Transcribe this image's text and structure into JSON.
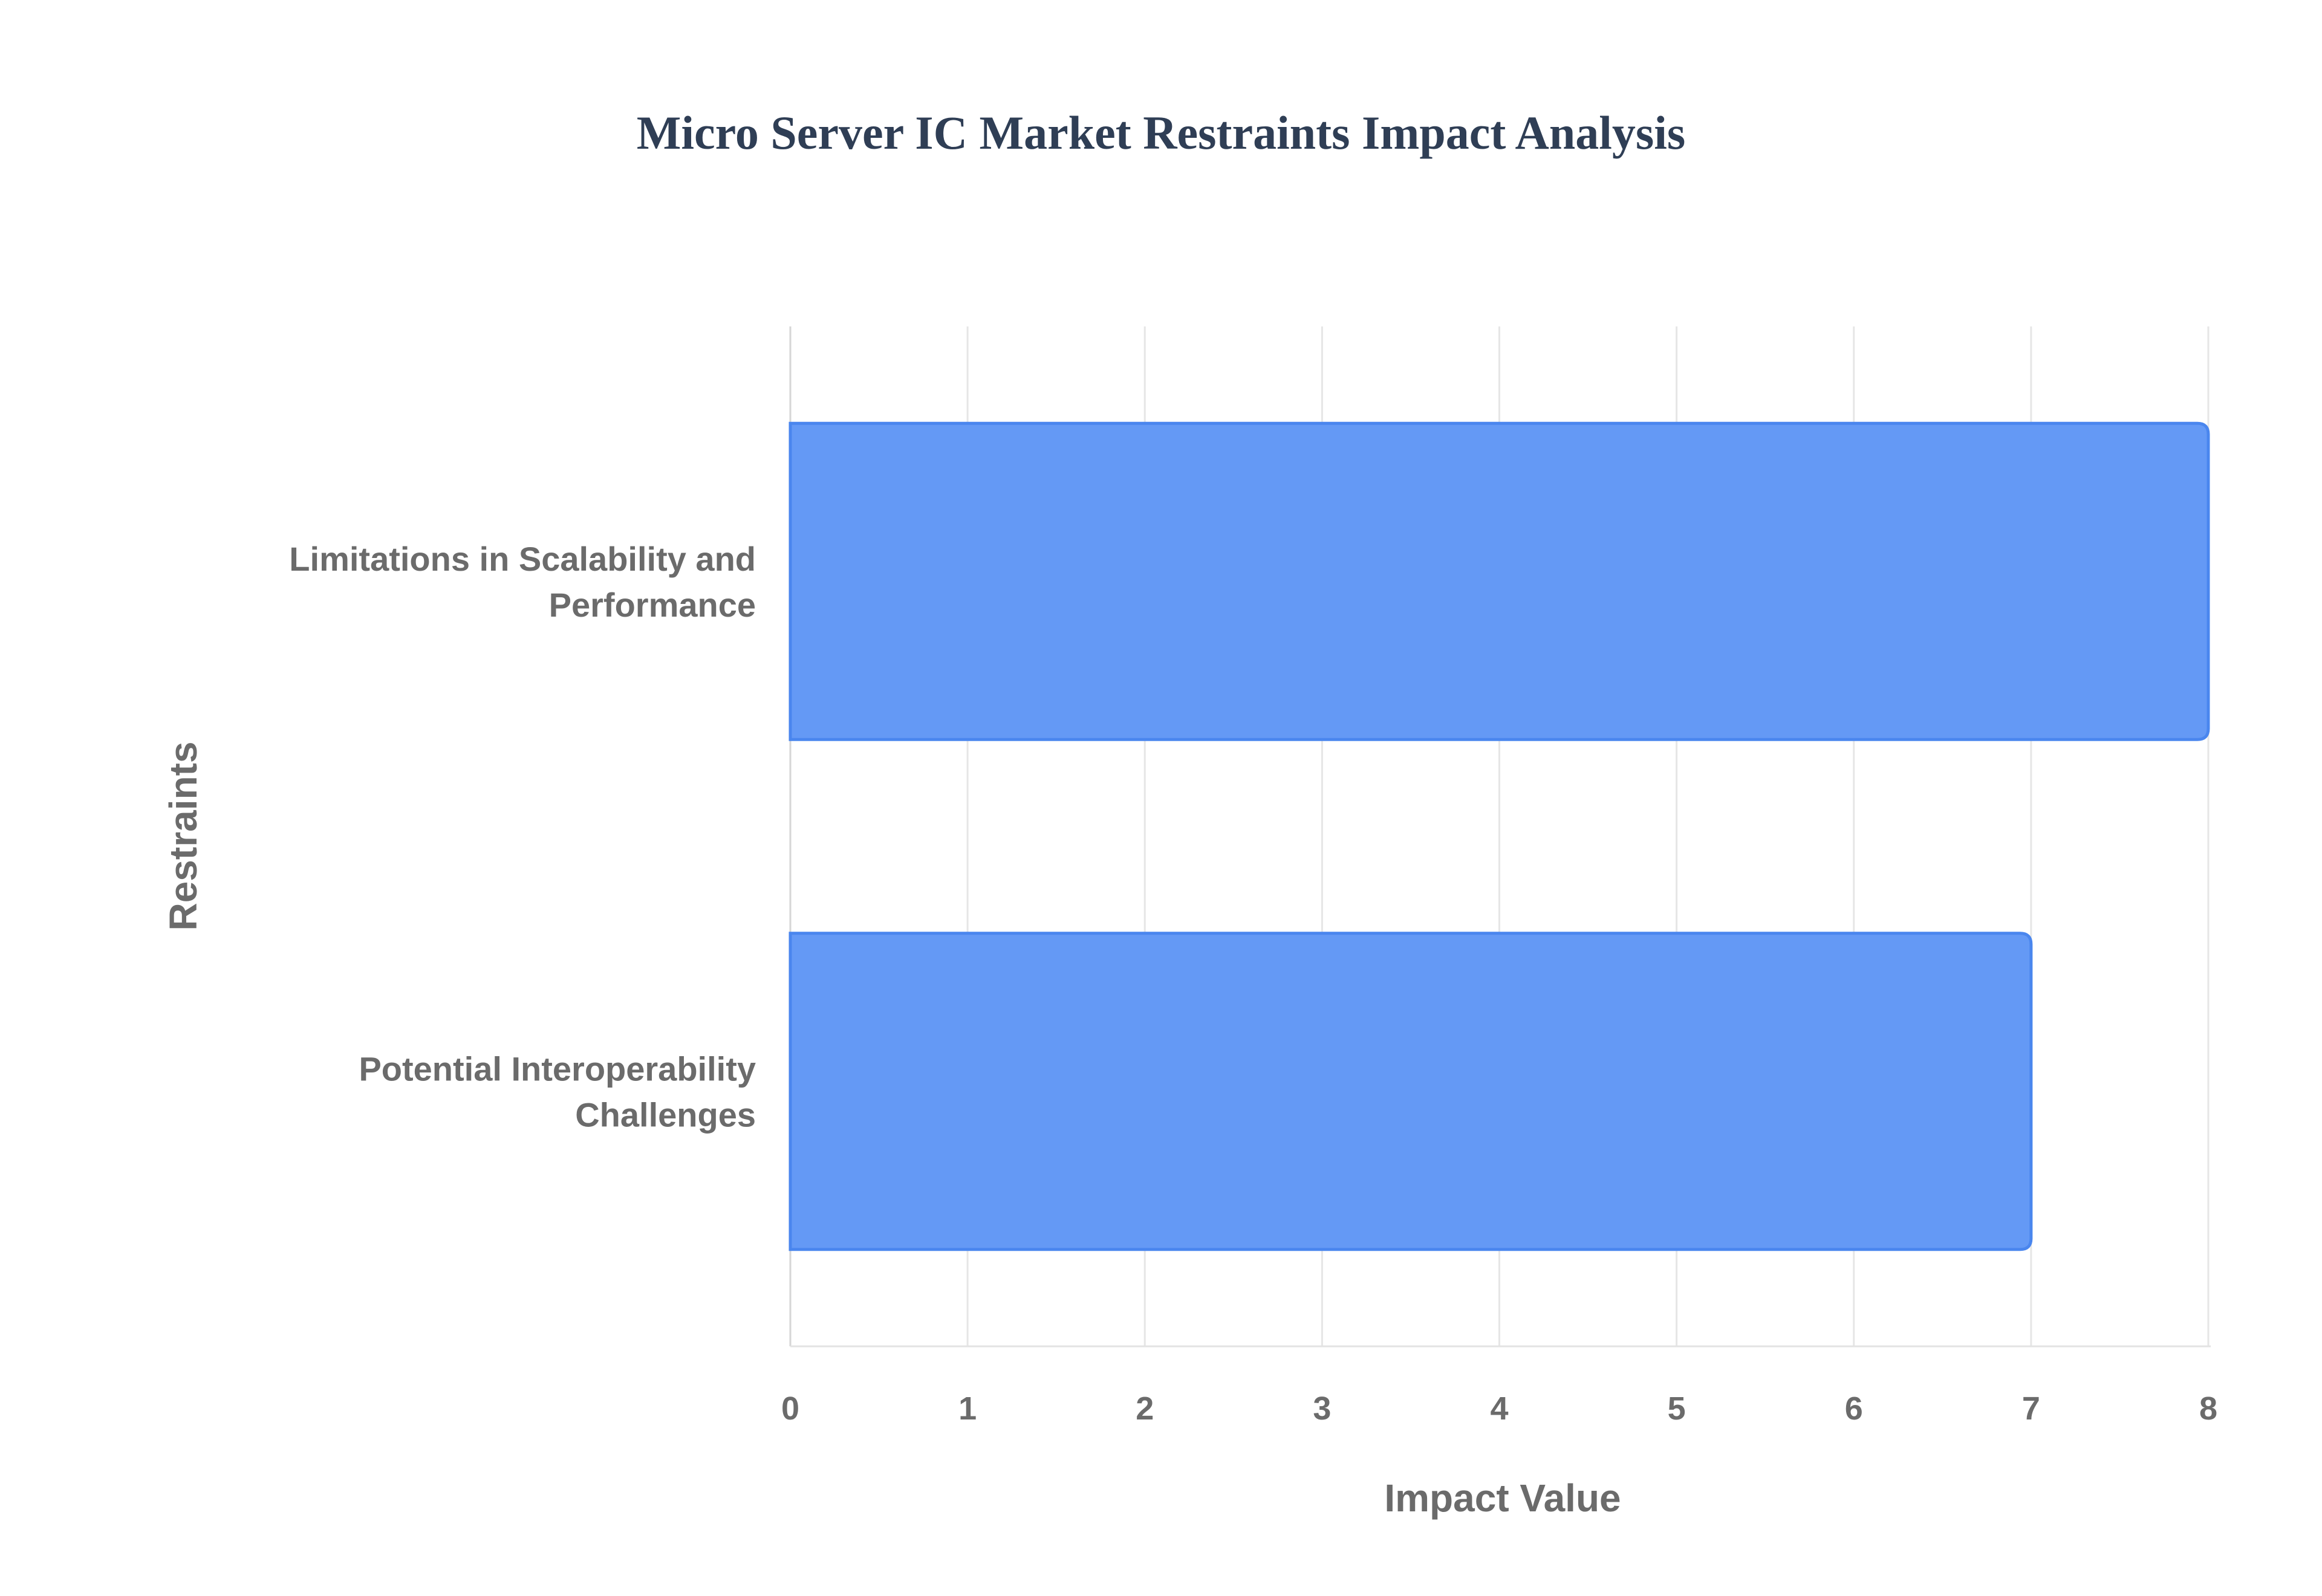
{
  "chart_data": {
    "type": "bar",
    "orientation": "horizontal",
    "title": "Micro Server IC Market Restraints Impact Analysis",
    "xlabel": "Impact Value",
    "ylabel": "Restraints",
    "categories": [
      [
        "Limitations in Scalability and",
        "Performance"
      ],
      [
        "Potential Interoperability",
        "Challenges"
      ]
    ],
    "values": [
      8,
      7
    ],
    "xlim": [
      0,
      8
    ],
    "xticks": [
      0,
      1,
      2,
      3,
      4,
      5,
      6,
      7,
      8
    ],
    "grid": true,
    "legend": "none",
    "colors": {
      "bar_fill": "#6499f5",
      "bar_stroke": "#4a86ee",
      "grid": "#e6e6e6",
      "title": "#2f3e55",
      "text": "#6b6b6b"
    }
  }
}
